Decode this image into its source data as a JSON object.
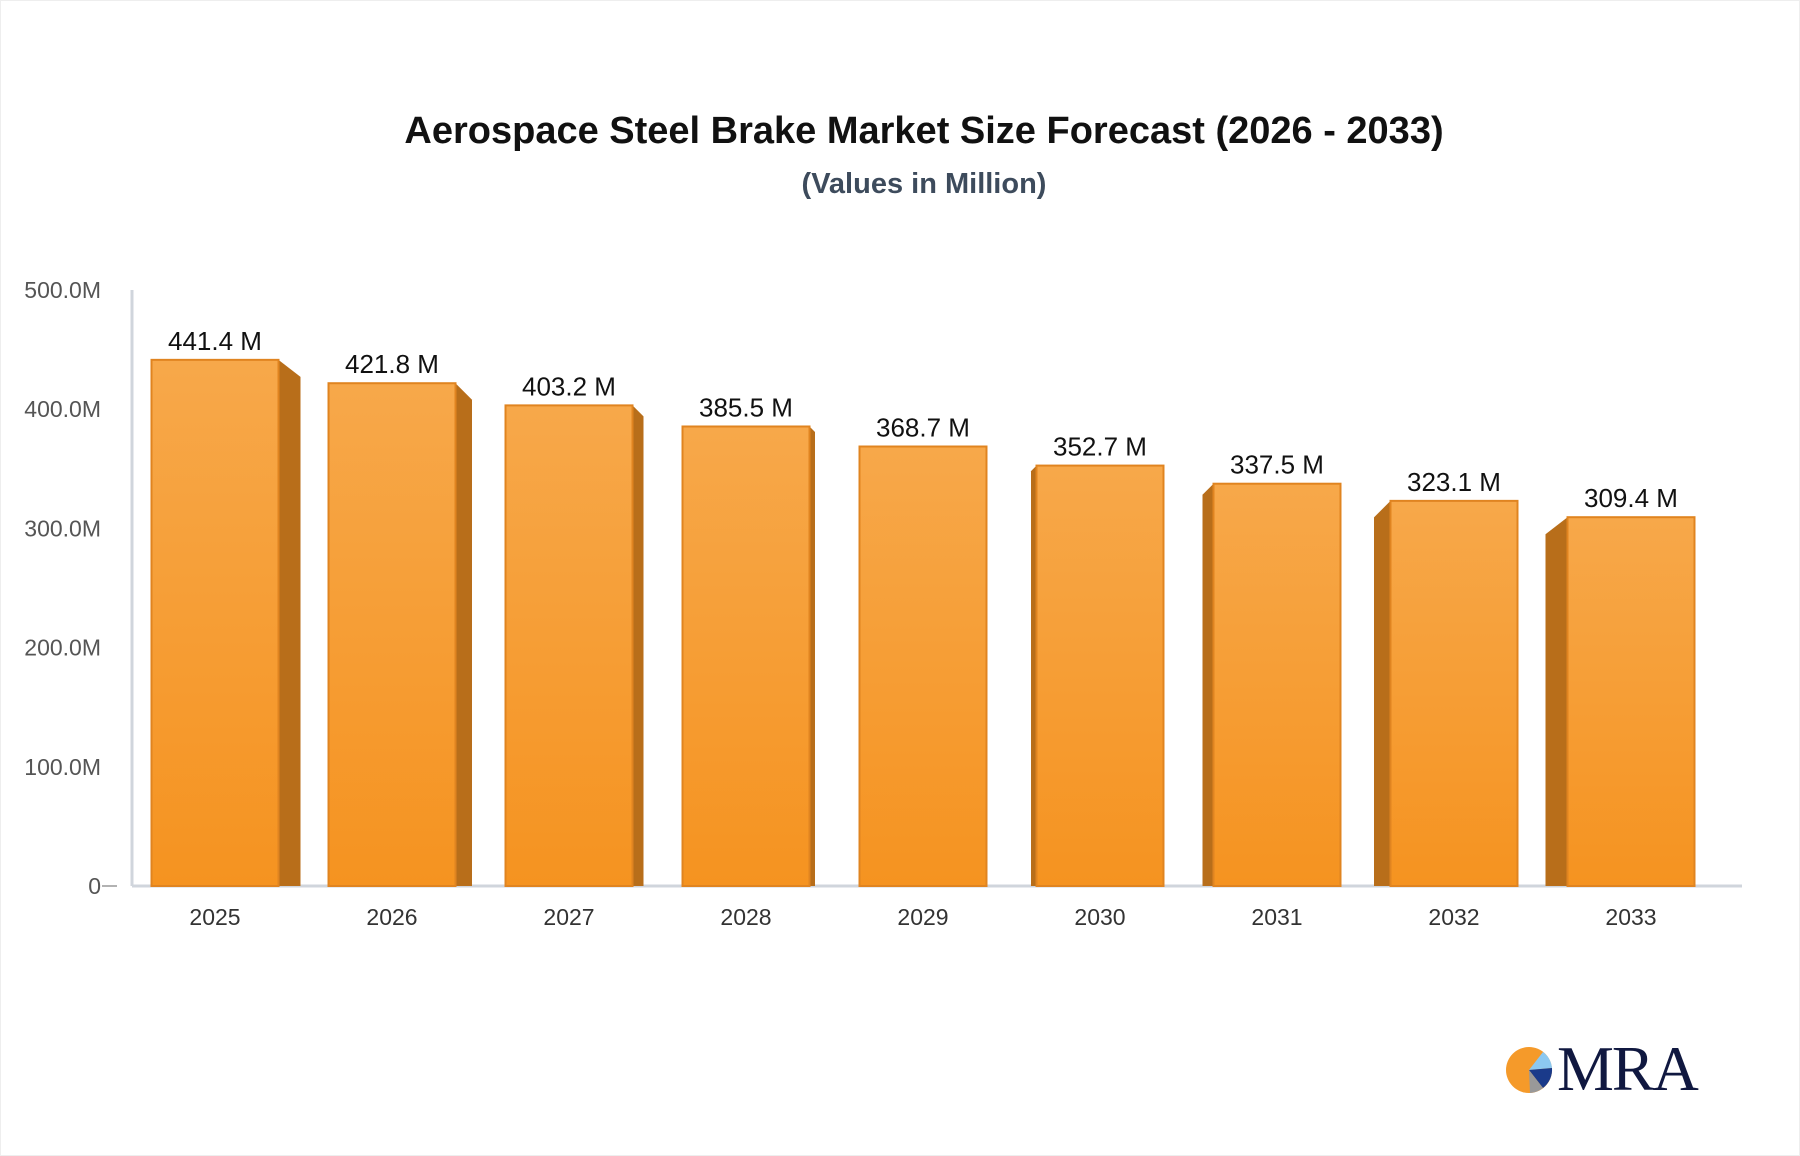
{
  "chart_data": {
    "type": "bar",
    "title": "Aerospace Steel Brake Market Size Forecast (2026 - 2033)",
    "subtitle": "(Values in Million)",
    "categories": [
      "2025",
      "2026",
      "2027",
      "2028",
      "2029",
      "2030",
      "2031",
      "2032",
      "2033"
    ],
    "values": [
      441.4,
      421.8,
      403.2,
      385.5,
      368.7,
      352.7,
      337.5,
      323.1,
      309.4
    ],
    "data_labels": [
      "441.4 M",
      "421.8 M",
      "403.2 M",
      "385.5 M",
      "368.7 M",
      "352.7 M",
      "337.5 M",
      "323.1 M",
      "309.4 M"
    ],
    "ylim": [
      0,
      500
    ],
    "yticks": [
      0,
      100,
      200,
      300,
      400,
      500
    ],
    "ytick_labels": [
      "0",
      "100.0M",
      "200.0M",
      "300.0M",
      "400.0M",
      "500.0M"
    ],
    "xlabel": "",
    "ylabel": "",
    "grid": false,
    "colors": {
      "bar_top": "#f7a84a",
      "bar_bottom": "#f59320",
      "bar_side": "#b86e1a",
      "bar_edge": "#e08420"
    }
  },
  "logo": {
    "text": "MRA"
  }
}
